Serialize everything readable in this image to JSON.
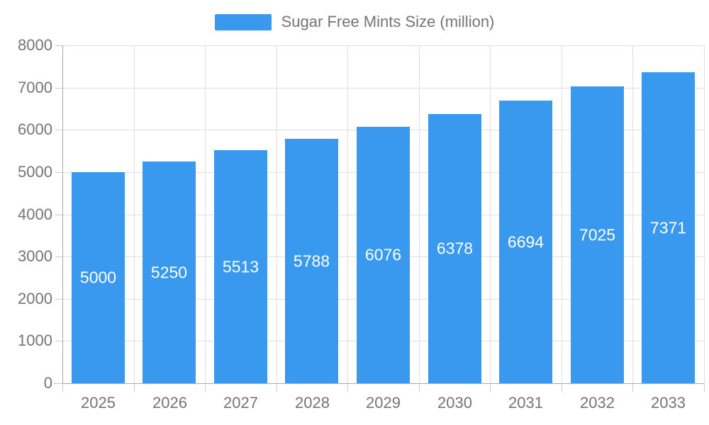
{
  "legend": {
    "label": "Sugar Free Mints Size (million)"
  },
  "colors": {
    "bar": "#3899EE",
    "bar_label": "#FFFFFF",
    "axis_label": "#757575",
    "legend_label": "#757575",
    "grid_line": "#E0E0E0",
    "axis_line": "#AAAAAA",
    "tick_line": "#CCCCCC",
    "background": "#FFFFFF"
  },
  "chart_data": {
    "type": "bar",
    "title": "Sugar Free Mints Size (million)",
    "categories": [
      "2025",
      "2026",
      "2027",
      "2028",
      "2029",
      "2030",
      "2031",
      "2032",
      "2033"
    ],
    "values": [
      5000,
      5250,
      5513,
      5788,
      6076,
      6378,
      6694,
      7025,
      7371
    ],
    "series": [
      {
        "name": "Sugar Free Mints Size (million)",
        "values": [
          5000,
          5250,
          5513,
          5788,
          6076,
          6378,
          6694,
          7025,
          7371
        ]
      }
    ],
    "xlabel": "",
    "ylabel": "",
    "ylim": [
      0,
      8000
    ],
    "ytick_step": 1000,
    "ytick_labels": [
      "0",
      "1000",
      "2000",
      "3000",
      "4000",
      "5000",
      "6000",
      "7000",
      "8000"
    ],
    "grid": true,
    "legend_position": "top",
    "bar_labels_visible": true,
    "bar_label_position": "inside-center"
  }
}
